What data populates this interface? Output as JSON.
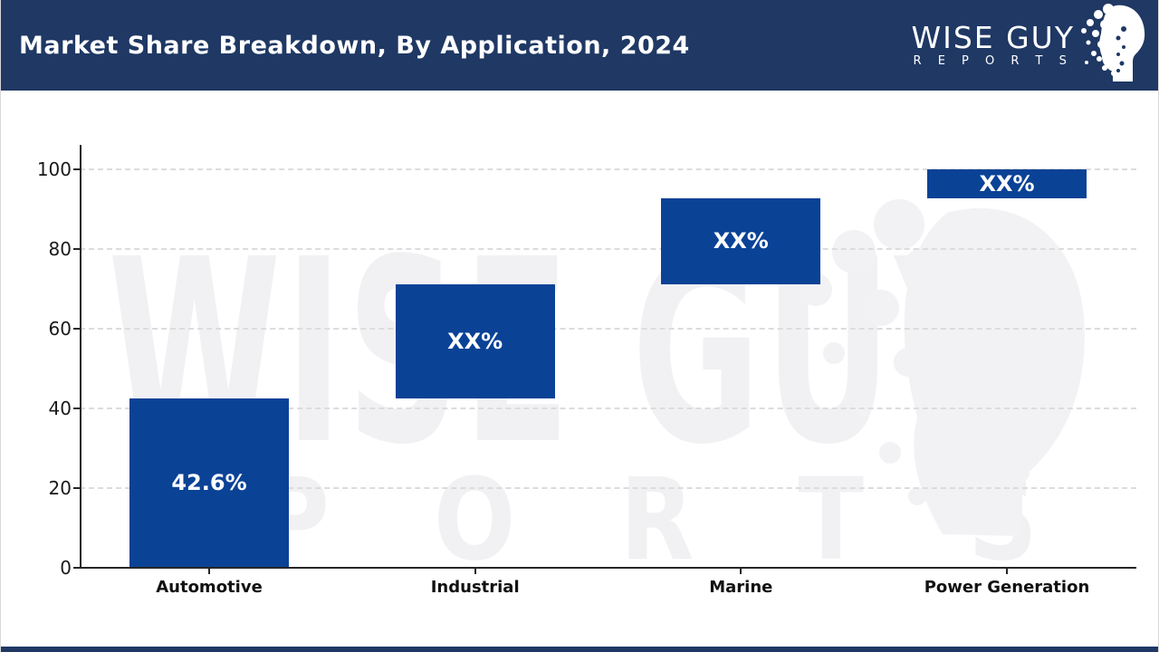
{
  "header": {
    "title": "Market Share Breakdown, By Application, 2024",
    "logo": {
      "line1": "WISE GUY",
      "line2": "R E P O R T S"
    }
  },
  "watermark": {
    "line1": "WISE GUY",
    "line2": "P O R T S"
  },
  "chart_data": {
    "type": "bar",
    "subtype": "waterfall",
    "title": "Market Share Breakdown, By Application, 2024",
    "xlabel": "",
    "ylabel": "",
    "categories": [
      "Automotive",
      "Industrial",
      "Marine",
      "Power Generation"
    ],
    "segments": [
      {
        "category": "Automotive",
        "start": 0,
        "end": 42.6,
        "label": "42.6%"
      },
      {
        "category": "Industrial",
        "start": 42.6,
        "end": 71.2,
        "label": "XX%"
      },
      {
        "category": "Marine",
        "start": 71.2,
        "end": 92.8,
        "label": "XX%"
      },
      {
        "category": "Power Generation",
        "start": 92.8,
        "end": 100,
        "label": "XX%"
      }
    ],
    "y_ticks": [
      0,
      20,
      40,
      60,
      80,
      100
    ],
    "ylim": [
      0,
      106
    ],
    "grid": "horizontal-dashed",
    "legend": "none",
    "bar_color": "#0a4296"
  },
  "colors": {
    "header_bg": "#1f3864",
    "footer_bg": "#1f3864",
    "bar": "#0a4296",
    "gridline": "#dcdcdc",
    "axis": "#262626",
    "watermark": "#f1f1f4"
  }
}
